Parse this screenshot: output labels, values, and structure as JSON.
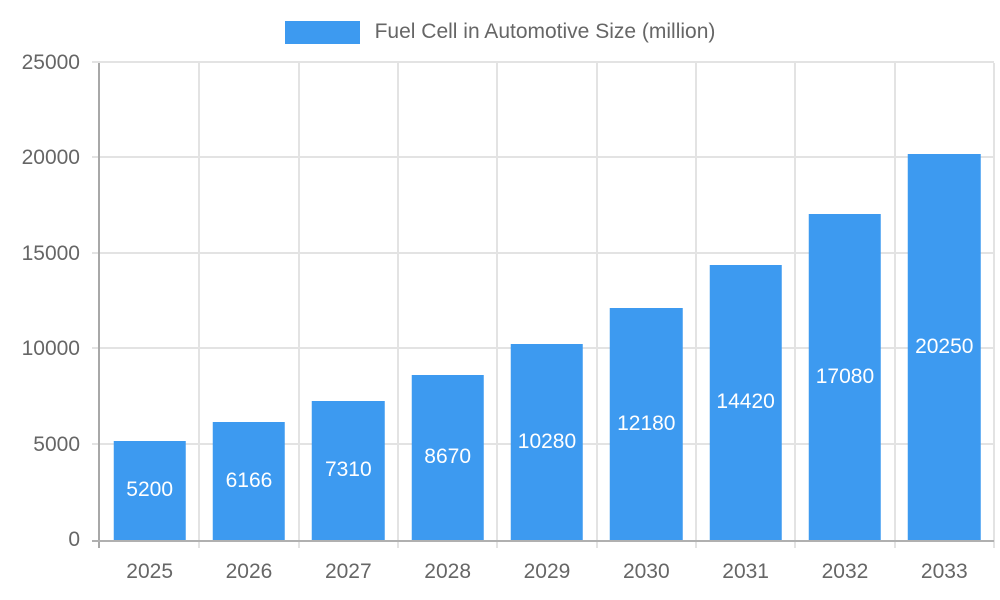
{
  "legend": {
    "label": "Fuel Cell in Automotive Size (million)"
  },
  "chart_data": {
    "type": "bar",
    "title": "Fuel Cell in Automotive Size (million)",
    "categories": [
      "2025",
      "2026",
      "2027",
      "2028",
      "2029",
      "2030",
      "2031",
      "2032",
      "2033"
    ],
    "values": [
      5200,
      6166,
      7310,
      8670,
      10280,
      12180,
      14420,
      17080,
      20250
    ],
    "series_name": "Fuel Cell in Automotive Size (million)",
    "xlabel": "",
    "ylabel": "",
    "ylim": [
      0,
      25000
    ],
    "yticks": [
      0,
      5000,
      10000,
      15000,
      20000,
      25000
    ],
    "grid": true,
    "legend_position": "top",
    "bar_color": "#3d9af0",
    "bar_label_color": "#ffffff",
    "axis_text_color": "#666666",
    "grid_color": "#e3e3e3",
    "axis_line_color": "#a8a8a8",
    "background_color": "#ffffff"
  }
}
